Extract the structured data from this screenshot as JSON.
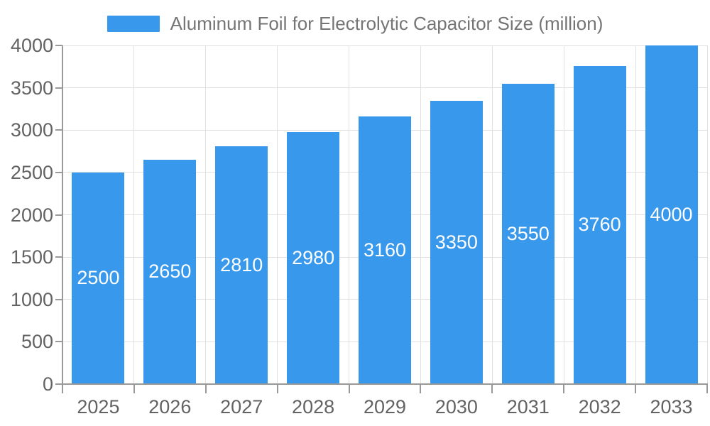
{
  "colors": {
    "bar": "#3898ec",
    "bar_label": "#ffffff",
    "grid": "#e0e0e0",
    "axis": "#999999",
    "axis_label": "#636363",
    "legend_text": "#757575",
    "background": "#ffffff"
  },
  "chart_data": {
    "type": "bar",
    "title": "Aluminum Foil for Electrolytic Capacitor Size (million)",
    "legend": "Aluminum Foil for Electrolytic Capacitor Size (million)",
    "legend_position": "top",
    "categories": [
      "2025",
      "2026",
      "2027",
      "2028",
      "2029",
      "2030",
      "2031",
      "2032",
      "2033"
    ],
    "values": [
      2500,
      2650,
      2810,
      2980,
      3160,
      3350,
      3550,
      3760,
      4000
    ],
    "bar_value_labels": [
      "2500",
      "2650",
      "2810",
      "2980",
      "3160",
      "3350",
      "3550",
      "3760",
      "4000"
    ],
    "xlabel": "",
    "ylabel": "",
    "ylim": [
      0,
      4000
    ],
    "ytick_step": 500,
    "yticks": [
      0,
      500,
      1000,
      1500,
      2000,
      2500,
      3000,
      3500,
      4000
    ],
    "grid": true
  }
}
